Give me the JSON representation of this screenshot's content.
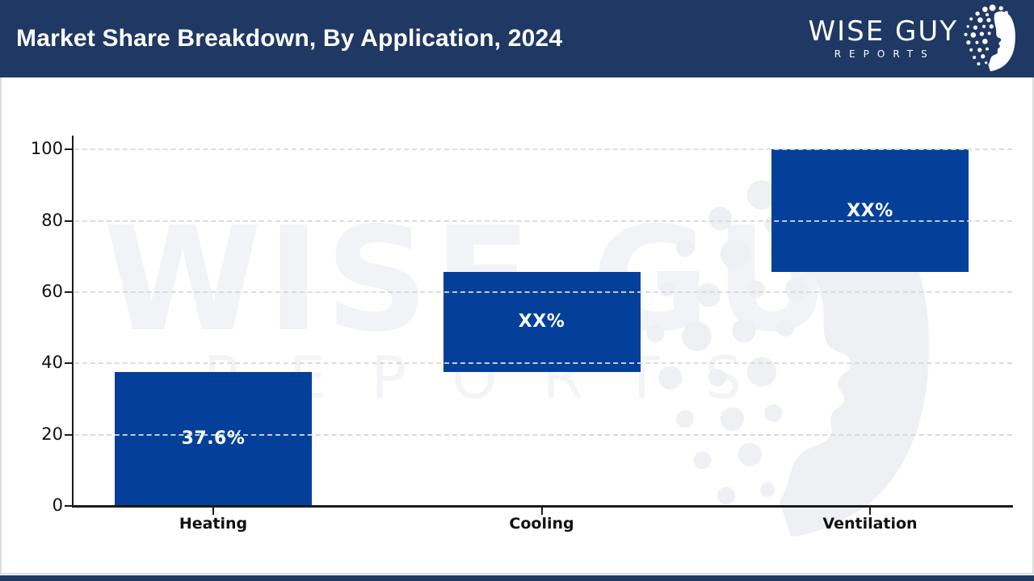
{
  "header": {
    "title": "Market Share Breakdown, By Application, 2024",
    "logo": {
      "line1": "WISE GUY",
      "line2": "REPORTS"
    }
  },
  "watermark": {
    "line1": "WISE GUY",
    "line2": "REPORTS"
  },
  "colors": {
    "header_bg": "#1f3864",
    "bar": "#04409a",
    "grid": "#d9d9d9",
    "axis": "#1a1a1a",
    "watermark_text": "#f2f3f6"
  },
  "chart_data": {
    "type": "bar",
    "subtype": "waterfall",
    "title": "Market Share Breakdown, By Application, 2024",
    "categories": [
      "Heating",
      "Cooling",
      "Ventilation"
    ],
    "segments": [
      {
        "category": "Heating",
        "start": 0,
        "end": 37.6,
        "label": "37.6%"
      },
      {
        "category": "Cooling",
        "start": 37.6,
        "end": 65.7,
        "label": "XX%"
      },
      {
        "category": "Ventilation",
        "start": 65.7,
        "end": 100,
        "label": "XX%"
      }
    ],
    "ylim": [
      0,
      100
    ],
    "yticks": [
      0,
      20,
      40,
      60,
      80,
      100
    ],
    "xlabel": "",
    "ylabel": "",
    "grid": "horizontal-dashed",
    "legend": "none",
    "bar_color": "#04409a"
  }
}
